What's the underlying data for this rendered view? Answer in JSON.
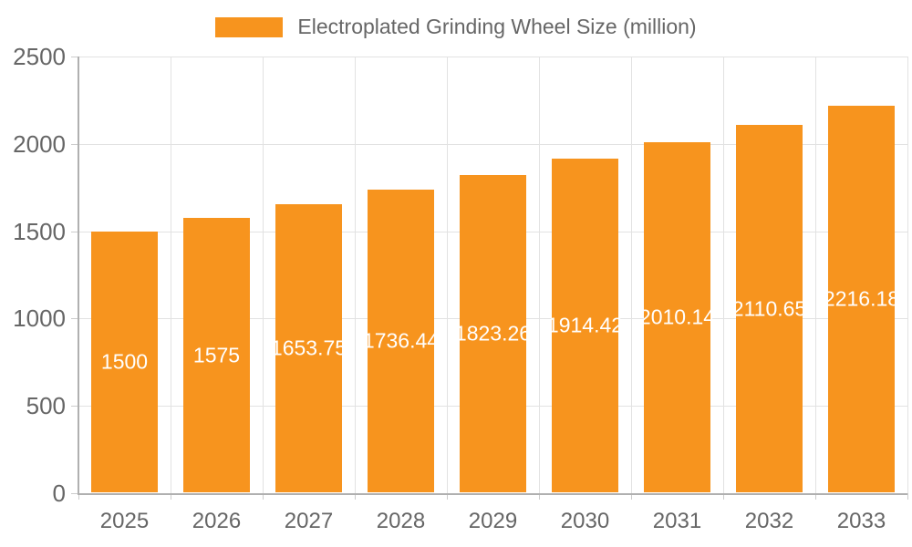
{
  "chart_data": {
    "type": "bar",
    "title": "Electroplated Grinding Wheel Size (million)",
    "categories": [
      "2025",
      "2026",
      "2027",
      "2028",
      "2029",
      "2030",
      "2031",
      "2032",
      "2033"
    ],
    "values": [
      1500,
      1575,
      1653.75,
      1736.44,
      1823.26,
      1914.42,
      2010.14,
      2110.65,
      2216.18
    ],
    "value_labels": [
      "1500",
      "1575",
      "1653.75",
      "1736.44",
      "1823.26",
      "1914.42",
      "2010.14",
      "2110.65",
      "2216.18"
    ],
    "xlabel": "",
    "ylabel": "",
    "ylim": [
      0,
      2500
    ],
    "yticks": [
      0,
      500,
      1000,
      1500,
      2000,
      2500
    ],
    "grid": true,
    "legend_position": "top-center"
  },
  "colors": {
    "bar": "#f7941e",
    "axis_text": "#666666",
    "value_label_text": "#ffffff",
    "gridline": "#e2e2e2",
    "axis_line": "#b0b0b0",
    "tick": "#cccccc",
    "background": "#ffffff"
  }
}
